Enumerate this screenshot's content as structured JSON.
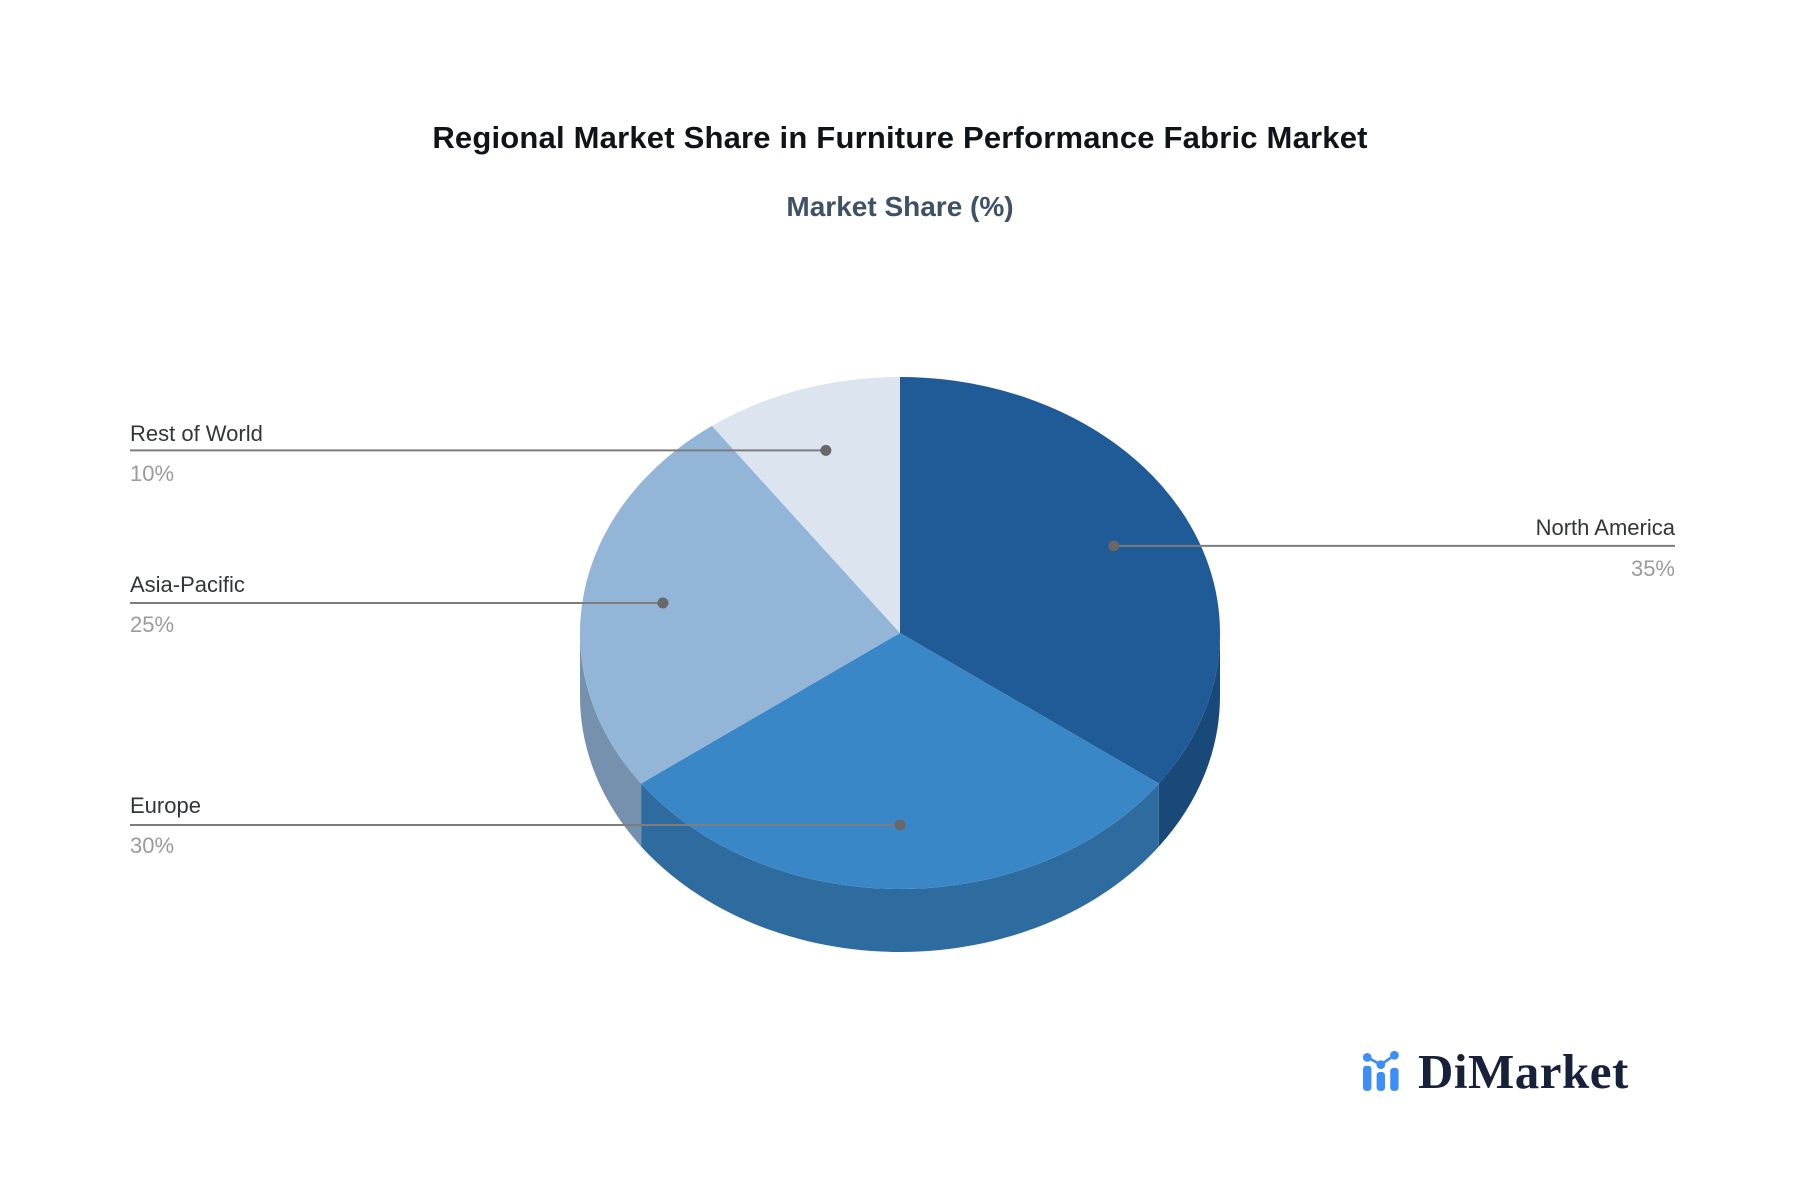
{
  "title": "Regional Market Share in Furniture Performance Fabric Market",
  "subtitle": "Market Share (%)",
  "chart_data": {
    "type": "pie",
    "style": "3d",
    "title": "Regional Market Share in Furniture Performance Fabric Market",
    "subtitle": "Market Share (%)",
    "unit": "%",
    "start_angle_deg": 0,
    "direction": "clockwise",
    "legend_position": "callout-labels",
    "series": [
      {
        "label": "North America",
        "value": 35,
        "display": "35%",
        "color": "#1e5b97"
      },
      {
        "label": "Europe",
        "value": 30,
        "display": "30%",
        "color": "#3a87c7"
      },
      {
        "label": "Asia-Pacific",
        "value": 25,
        "display": "25%",
        "color": "#92b5d8"
      },
      {
        "label": "Rest of World",
        "value": 10,
        "display": "10%",
        "color": "#dce4ef"
      }
    ]
  },
  "logo": {
    "text": "DiMarket",
    "icon": "bar-line-chart-icon"
  },
  "colors": {
    "title": "#101418",
    "subtitle": "#3f5166",
    "label": "#323639",
    "percent": "#9b9b9b",
    "leader_line": "#7d7d7d",
    "leader_dot": "#686868",
    "logo_text": "#17213a",
    "logo_icon": "#3e8ef7",
    "background": "#ffffff"
  }
}
